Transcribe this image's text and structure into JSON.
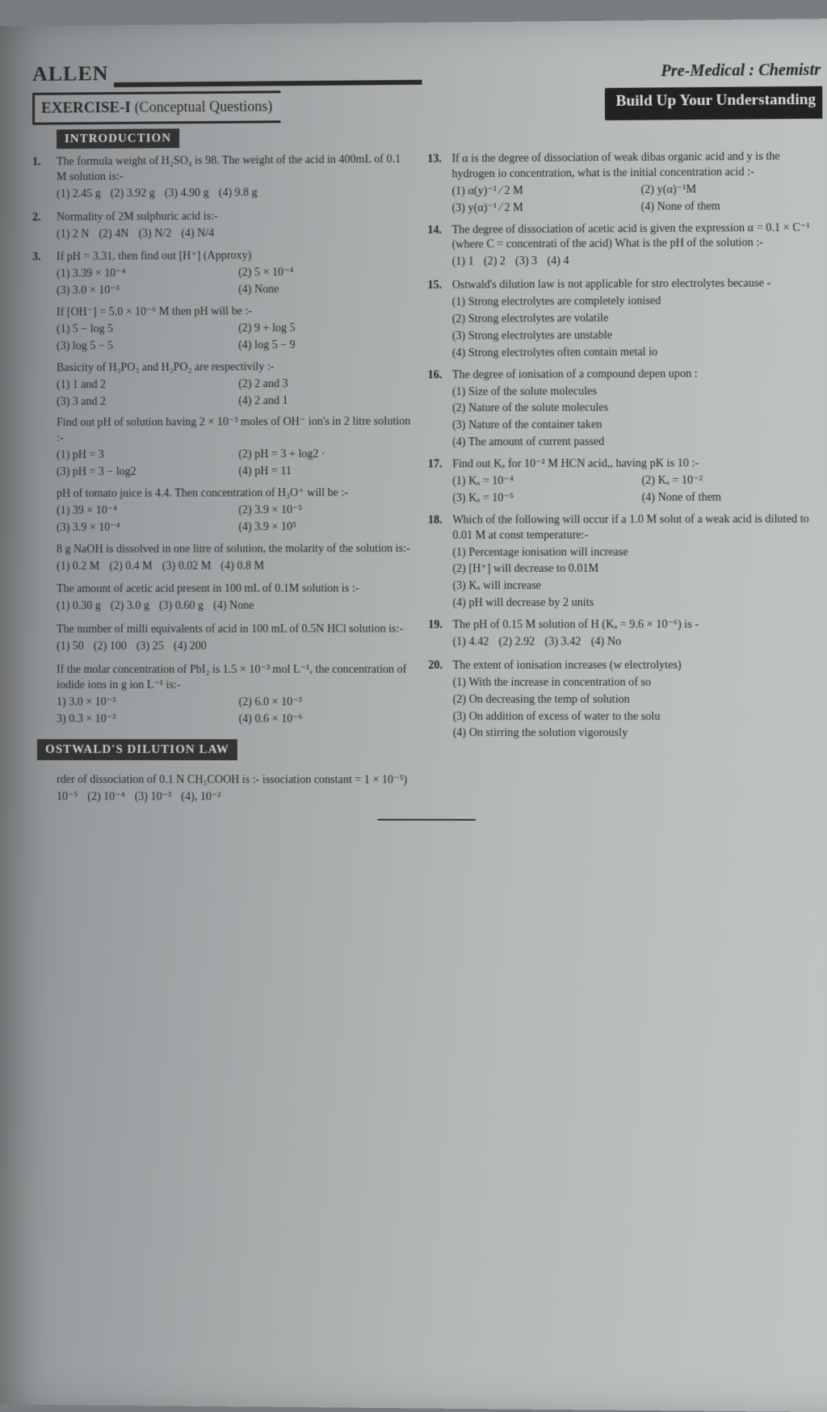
{
  "brand": "ALLEN",
  "pre_medical": "Pre-Medical : Chemistr",
  "exercise_label": "EXERCISE-I",
  "exercise_sub": "(Conceptual Questions)",
  "build_up": "Build Up Your Understanding",
  "intro_header": "INTRODUCTION",
  "ostwald_header": "OSTWALD'S DILUTION LAW",
  "colors": {
    "text": "#2a2a2a",
    "header_bg": "#333333",
    "header_fg": "#cccccc",
    "page_bg_gradient": [
      "#888b8d",
      "#c1c4c5"
    ]
  },
  "font_sizes": {
    "body": 14,
    "brand": 26,
    "headers": 19
  },
  "left": {
    "q1": {
      "num": "1.",
      "text": "The formula weight of H₂SO₄ is 98. The weight of the acid in 400mL of 0.1 M solution is:-",
      "opts": [
        "(1) 2.45 g",
        "(2) 3.92 g",
        "(3) 4.90 g",
        "(4) 9.8 g"
      ]
    },
    "q2": {
      "num": "2.",
      "text": "Normality of 2M sulphuric acid is:-",
      "opts": [
        "(1) 2 N",
        "(2) 4N",
        "(3) N/2",
        "(4) N/4"
      ]
    },
    "q3": {
      "num": "3.",
      "text": "If pH = 3.31, then find out [H⁺] (Approxy)",
      "opts": [
        "(1) 3.39 × 10⁻⁴",
        "(2) 5 × 10⁻⁴",
        "(3) 3.0 × 10⁻³",
        "(4) None"
      ]
    },
    "q4": {
      "num": " ",
      "text": "If [OH⁻] = 5.0 × 10⁻⁶ M then pH will be :-",
      "opts": [
        "(1) 5 − log 5",
        "(2) 9 + log 5",
        "(3) log 5 − 5",
        "(4) log 5 − 9"
      ]
    },
    "q5": {
      "num": " ",
      "text": "Basicity of H₃PO₃ and H₃PO₂ are respectivily :-",
      "opts": [
        "(1) 1 and 2",
        "(2) 2 and 3",
        "(3) 3 and 2",
        "(4) 2 and 1"
      ]
    },
    "q6": {
      "num": " ",
      "text": "Find out pH of solution having 2 × 10⁻³ moles of OH⁻ ion's in 2 litre solution :-",
      "opts": [
        "(1) pH = 3",
        "(2) pH = 3 + log2 ·",
        "(3) pH = 3 − log2",
        "(4) pH = 11"
      ]
    },
    "q7": {
      "num": " ",
      "text": "pH of tomato juice is 4.4. Then concentration of H₃O⁺ will be :-",
      "opts": [
        "(1) 39 × 10⁻⁴",
        "(2) 3.9 × 10⁻⁵",
        "(3) 3.9 × 10⁻⁴",
        "(4) 3.9 × 10⁵"
      ]
    },
    "q8": {
      "num": " ",
      "text": "8 g NaOH is dissolved in one litre of solution, the molarity of the solution is:-",
      "opts": [
        "(1) 0.2 M",
        "(2) 0.4 M",
        "(3) 0.02 M",
        "(4) 0.8 M"
      ]
    },
    "q9": {
      "num": " ",
      "text": "The amount of acetic acid present in 100 mL of 0.1M solution is :-",
      "opts": [
        "(1) 0.30 g",
        "(2) 3.0 g",
        "(3) 0.60 g",
        "(4) None"
      ]
    },
    "q10": {
      "num": " ",
      "text": "The number of milli equivalents of acid in 100 mL of 0.5N HCl solution is:-",
      "opts": [
        "(1) 50",
        "(2) 100",
        "(3) 25",
        "(4) 200"
      ]
    },
    "q11": {
      "num": " ",
      "text": "If the molar concentration of PbI₂ is 1.5 × 10⁻³ mol L⁻¹, the concentration of iodide ions in g ion L⁻¹ is:-",
      "opts": [
        "1) 3.0 × 10⁻³",
        "(2) 6.0 × 10⁻³",
        "3) 0.3 × 10⁻³",
        "(4) 0.6 × 10⁻⁶"
      ]
    },
    "q12": {
      "num": " ",
      "text": "rder of dissociation of 0.1 N CH₃COOH is :- issociation constant = 1 × 10⁻⁵)",
      "opts": [
        "10⁻⁵",
        "(2) 10⁻⁴",
        "(3) 10⁻³",
        "(4), 10⁻²"
      ]
    }
  },
  "right": {
    "q13": {
      "num": "13.",
      "text": "If α is the degree of dissociation of weak dibas organic acid and y is the hydrogen io concentration, what is the initial concentration acid :-",
      "opts": [
        "(1) α(y)⁻¹ ⁄ 2  M",
        "(2) y(α)⁻¹M",
        "(3) y(α)⁻¹ ⁄ 2  M",
        "(4) None of them"
      ]
    },
    "q14": {
      "num": "14.",
      "text": "The degree of dissociation of acetic acid is given the expression α = 0.1 × C⁻¹ (where C = concentrati of the acid) What is the pH of the solution :-",
      "opts": [
        "(1) 1",
        "(2) 2",
        "(3) 3",
        "(4) 4"
      ]
    },
    "q15": {
      "num": "15.",
      "text": "Ostwald's dilution law is not applicable for stro electrolytes because -",
      "opts": [
        "(1) Strong electrolytes are completely ionised",
        "(2) Strong electrolytes are volatile",
        "(3) Strong electrolytes are unstable",
        "(4) Strong electrolytes often contain metal io"
      ]
    },
    "q16": {
      "num": "16.",
      "text": "The degree of ionisation of a compound depen upon :",
      "opts": [
        "(1) Size of the solute molecules",
        "(2) Nature of the solute molecules",
        "(3) Nature of the container taken",
        "(4) The amount of current passed"
      ]
    },
    "q17": {
      "num": "17.",
      "text": "Find out Kₐ for 10⁻² M HCN acid,, having pK is 10 :-",
      "opts": [
        "(1) Kₐ = 10⁻⁴",
        "(2) Kₐ = 10⁻²",
        "(3) Kₐ = 10⁻⁵",
        "(4) None of them"
      ]
    },
    "q18": {
      "num": "18.",
      "text": "Which of the following will occur if a 1.0 M solut of a weak acid is diluted to 0.01 M at const temperature:-",
      "opts": [
        "(1) Percentage ionisation will increase",
        "(2) [H⁺] will decrease to 0.01M",
        "(3) Kₐ will increase",
        "(4) pH will decrease by 2 units"
      ]
    },
    "q19": {
      "num": "19.",
      "text": "The pH of 0.15 M solution of H (Kₐ = 9.6 × 10⁻⁶) is -",
      "opts": [
        "(1) 4.42",
        "(2) 2.92",
        "(3) 3.42",
        "(4) No"
      ]
    },
    "q20": {
      "num": "20.",
      "text": "The extent of ionisation increases (w electrolytes)",
      "opts": [
        "(1) With the increase in concentration of so",
        "(2) On decreasing the temp of solution",
        "(3) On addition of excess of water to the solu",
        "(4) On stirring the solution vigorously"
      ]
    }
  }
}
